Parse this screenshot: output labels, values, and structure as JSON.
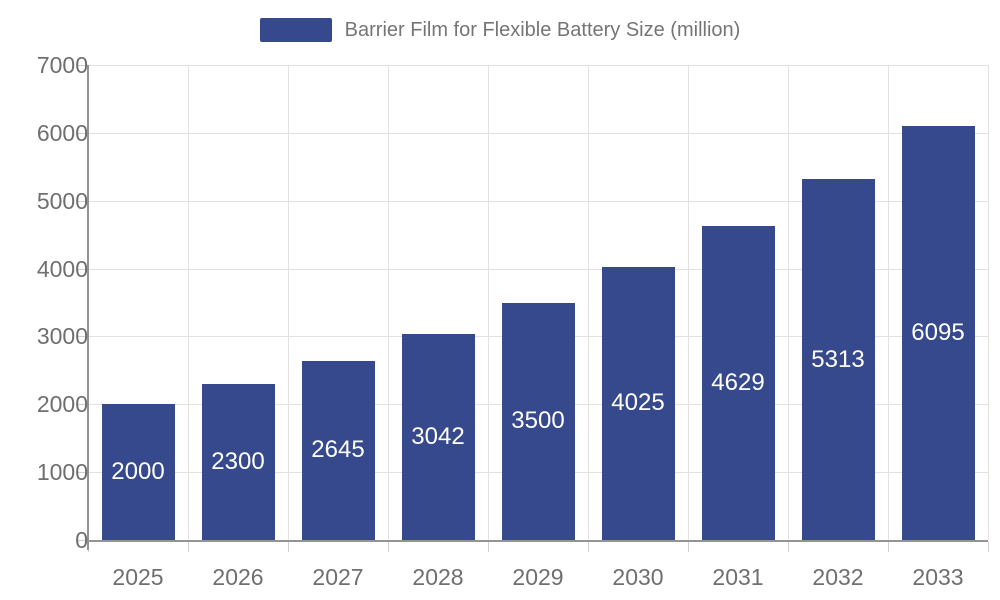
{
  "chart_data": {
    "type": "bar",
    "title": "Barrier Film for Flexible Battery Size (million)",
    "legend_position": "top",
    "categories": [
      "2025",
      "2026",
      "2027",
      "2028",
      "2029",
      "2030",
      "2031",
      "2032",
      "2033"
    ],
    "values": [
      2000,
      2300,
      2645,
      3042,
      3500,
      4025,
      4629,
      5313,
      6095
    ],
    "series": [
      {
        "name": "Barrier Film for Flexible Battery Size (million)",
        "values": [
          2000,
          2300,
          2645,
          3042,
          3500,
          4025,
          4629,
          5313,
          6095
        ]
      }
    ],
    "xlabel": "",
    "ylabel": "",
    "ylim": [
      0,
      7000
    ],
    "yticks": [
      0,
      1000,
      2000,
      3000,
      4000,
      5000,
      6000,
      7000
    ],
    "grid": true,
    "value_labels": "inside-center",
    "colors": {
      "bar": "#36498c",
      "value_label": "#ffffff",
      "grid_line": "#e2e2e2",
      "axis_line": "#949494",
      "tick_mark": "#cfcfcf",
      "axis_text": "#6f6f6f",
      "legend_text": "#757575",
      "background": "#ffffff"
    }
  }
}
